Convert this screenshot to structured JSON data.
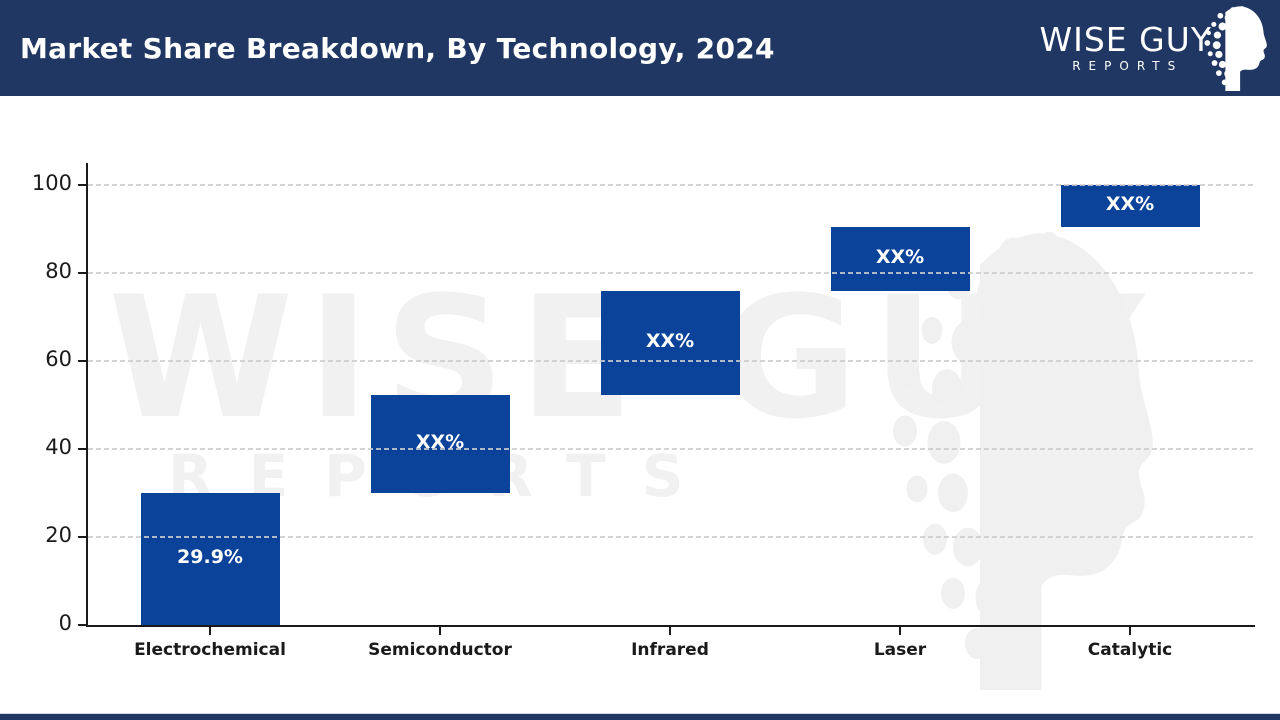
{
  "header": {
    "title": "Market Share Breakdown, By Technology, 2024",
    "brand": {
      "wordmark": "WISE GUY",
      "subtext": "REPORTS"
    }
  },
  "watermark": {
    "wordmark": "WISE GUY",
    "subtext": "REPORTS"
  },
  "chart_data": {
    "type": "bar",
    "subtype": "waterfall-floating-bars",
    "title": "Market Share Breakdown, By Technology, 2024",
    "categories": [
      "Electrochemical",
      "Semiconductor",
      "Infrared",
      "Laser",
      "Catalytic"
    ],
    "segments": [
      {
        "category": "Electrochemical",
        "start": 0,
        "end": 29.9,
        "value": 29.9,
        "label": "29.9%"
      },
      {
        "category": "Semiconductor",
        "start": 29.9,
        "end": 52.3,
        "value": 22.4,
        "label": "XX%"
      },
      {
        "category": "Infrared",
        "start": 52.3,
        "end": 75.9,
        "value": 23.6,
        "label": "XX%"
      },
      {
        "category": "Laser",
        "start": 75.9,
        "end": 90.4,
        "value": 14.5,
        "label": "XX%"
      },
      {
        "category": "Catalytic",
        "start": 90.4,
        "end": 100,
        "value": 9.6,
        "label": "XX%"
      }
    ],
    "xlabel": "",
    "ylabel": "",
    "ylim": [
      0,
      105
    ],
    "yticks": [
      0,
      20,
      40,
      60,
      80,
      100
    ],
    "ytick_labels": [
      "0",
      "20",
      "40",
      "60",
      "80",
      "100"
    ],
    "grid": "horizontal-dashed",
    "legend": "none",
    "bar_value_mask_note": "all bars except Electrochemical show masked label XX%"
  },
  "colors": {
    "header_bg": "#203764",
    "footer_bg": "#203764",
    "background": "#ffffff",
    "bar": "#0a4399",
    "bar_label": "#ffffff",
    "axis_text": "#1a1a1a",
    "grid": "#cccccc",
    "watermark": "#f1f1f2"
  }
}
